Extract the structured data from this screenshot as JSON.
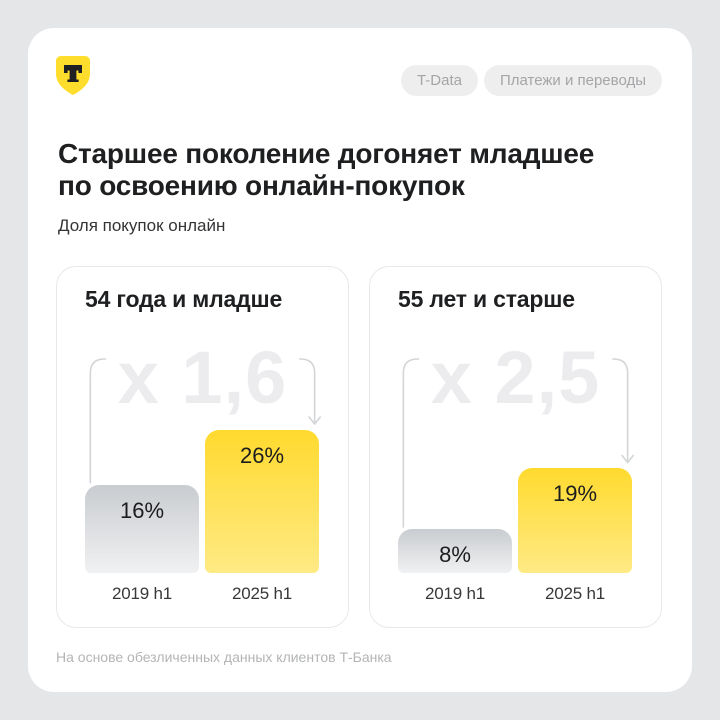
{
  "page": {
    "background_color": "#e5e6e8",
    "card_color": "#ffffff"
  },
  "header": {
    "logo": {
      "icon": "t-bank-shield-icon",
      "letter": "T",
      "shield_color": "#ffdd2d"
    },
    "badges": [
      {
        "label": "T-Data"
      },
      {
        "label": "Платежи и переводы"
      }
    ]
  },
  "title": "Старшее поколение догоняет младшее\nпо освоению онлайн-покупок",
  "subtitle": "Доля покупок онлайн",
  "footnote": "На основе обезличенных данных клиентов Т-Банка",
  "colors": {
    "brand_yellow": "#ffdd2d",
    "bar_gray_top": "#c9ccd0",
    "bar_gray_bottom": "#f0f1f2",
    "bar_yellow_top": "#ffda2e",
    "bar_yellow_bottom": "#ffea85",
    "watermark_gray": "#ececee",
    "arrow_gray": "#d4d5d7"
  },
  "chart_data": [
    {
      "type": "bar",
      "title": "54 года и младше",
      "growth_multiplier": "x 1,6",
      "categories": [
        "2019 h1",
        "2025 h1"
      ],
      "values": [
        16,
        26
      ],
      "value_labels": [
        "16%",
        "26%"
      ],
      "unit": "%",
      "bar_colors": [
        "gray",
        "yellow"
      ],
      "annotation": "arrow from 2019 bar to 2025 bar"
    },
    {
      "type": "bar",
      "title": "55 лет и старше",
      "growth_multiplier": "x 2,5",
      "categories": [
        "2019 h1",
        "2025 h1"
      ],
      "values": [
        8,
        19
      ],
      "value_labels": [
        "8%",
        "19%"
      ],
      "unit": "%",
      "bar_colors": [
        "gray",
        "yellow"
      ],
      "annotation": "arrow from 2019 bar to 2025 bar"
    }
  ]
}
